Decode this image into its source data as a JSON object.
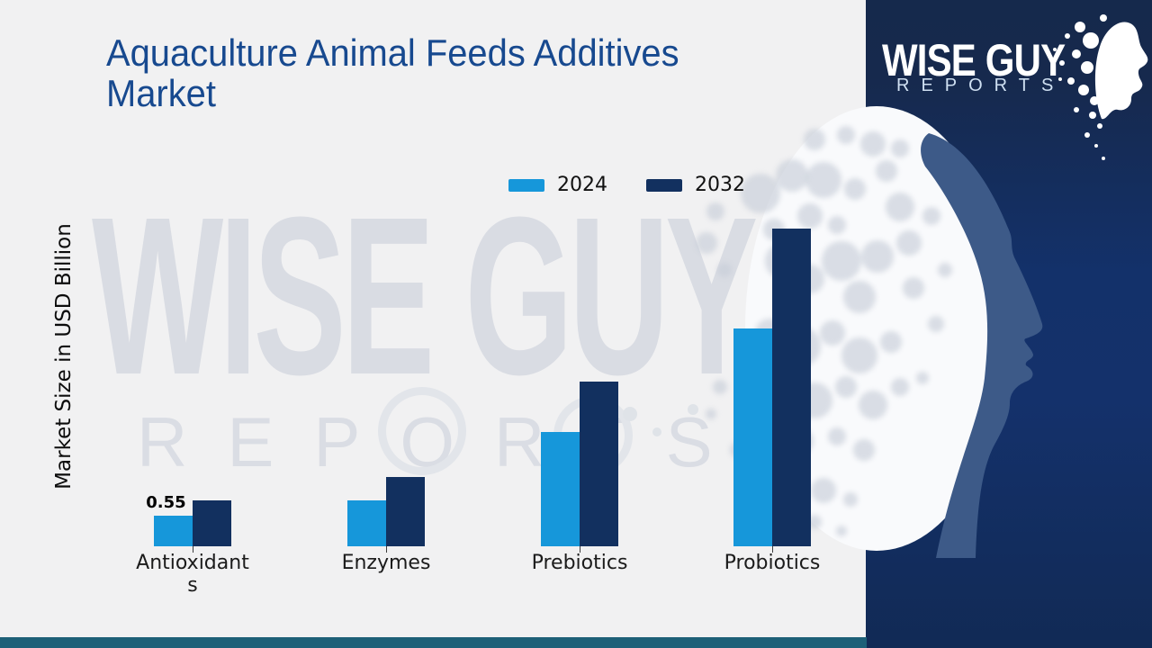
{
  "title": {
    "text": "Aquaculture Animal Feeds Additives Market",
    "color": "#17498f"
  },
  "y_axis": {
    "label": "Market Size in USD Billion"
  },
  "legend": [
    {
      "label": "2024",
      "color": "#1697da"
    },
    {
      "label": "2032",
      "color": "#12305f"
    }
  ],
  "chart_data": {
    "type": "bar",
    "title": "Aquaculture Animal Feeds Additives Market",
    "xlabel": "",
    "ylabel": "Market Size in USD Billion",
    "categories": [
      "Antioxidants",
      "Enzymes",
      "Prebiotics",
      "Probiotics"
    ],
    "category_display_lines": [
      [
        "Antioxidant",
        "s"
      ],
      [
        "Enzymes"
      ],
      [
        "Prebiotics"
      ],
      [
        "Probiotics"
      ]
    ],
    "series": [
      {
        "name": "2024",
        "color": "#1697da",
        "values": [
          0.55,
          0.83,
          2.05,
          3.9
        ]
      },
      {
        "name": "2032",
        "color": "#12305f",
        "values": [
          0.83,
          1.25,
          2.95,
          5.7
        ]
      }
    ],
    "value_labels": [
      {
        "category": "Antioxidants",
        "series": "2024",
        "text": "0.55"
      }
    ],
    "ylim": [
      0,
      6.5
    ],
    "grid": false,
    "axis_lines": false,
    "legend_position": "top-right"
  },
  "watermark": {
    "line1": "WISE GUY",
    "line2": "REPORTS"
  },
  "brand": {
    "name_line1": "WISE GUY",
    "name_line2": "REPORTS",
    "panel_color": "#15294c",
    "accent_bar_color": "#1d6078",
    "face_color": "#3d5a88",
    "icons": [
      "dotted-head-icon",
      "face-profile-silhouette",
      "brain-dots-pattern"
    ]
  },
  "page": {
    "background": "#f1f1f2"
  }
}
